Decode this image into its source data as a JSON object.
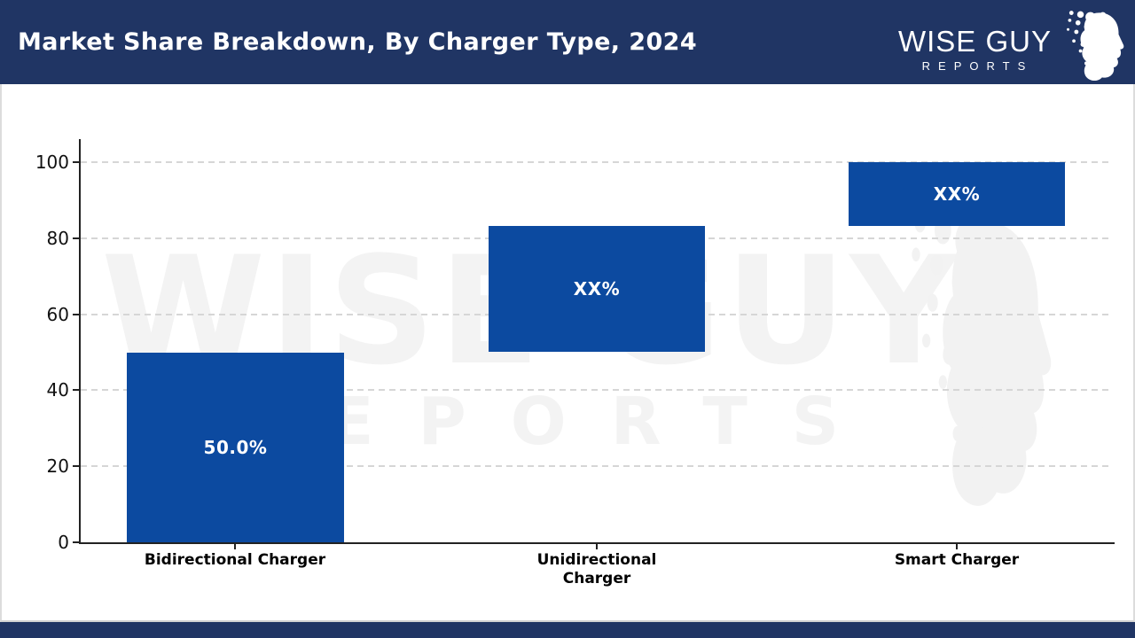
{
  "header": {
    "title": "Market Share Breakdown, By Charger Type, 2024",
    "logo": {
      "name": "WISE GUY",
      "sub": "REPORTS"
    }
  },
  "watermark": {
    "line1": "WISE GUY",
    "line2": "REPORTS"
  },
  "chart_data": {
    "type": "bar",
    "subtype": "waterfall",
    "title": "Market Share Breakdown, By Charger Type, 2024",
    "categories": [
      "Bidirectional Charger",
      "Unidirectional Charger",
      "Smart Charger"
    ],
    "segments": [
      {
        "category": "Bidirectional Charger",
        "start": 0,
        "end": 50,
        "label": "50.0%"
      },
      {
        "category": "Unidirectional Charger",
        "start": 50,
        "end": 83.3,
        "label": "XX%"
      },
      {
        "category": "Smart Charger",
        "start": 83.3,
        "end": 100,
        "label": "XX%"
      }
    ],
    "yticks": [
      0,
      20,
      40,
      60,
      80,
      100
    ],
    "ylim": [
      0,
      106
    ],
    "grid": "horizontal dashed",
    "legend": "none",
    "xlabel": "",
    "ylabel": "",
    "colors": {
      "bar": "#0c4aa0",
      "header": "#203564",
      "gridline": "#d6d6d6",
      "watermark": "#f3f3f3",
      "axis": "#222222"
    }
  }
}
